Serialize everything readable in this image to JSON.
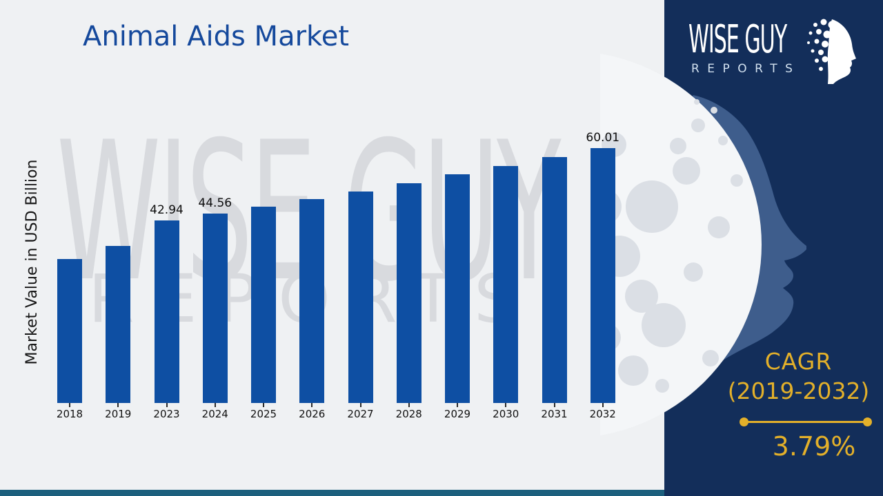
{
  "title": "Animal Aids Market",
  "y_axis_label": "Market Value in USD Billion",
  "watermark": {
    "line1": "WISE GUY",
    "line2": "REPORTS"
  },
  "logo": {
    "line1": "WISE GUY",
    "line2": "REPORTS"
  },
  "cagr": {
    "label": "CAGR",
    "range": "(2019-2032)",
    "value": "3.79%"
  },
  "colors": {
    "bar": "#0e4fa3",
    "navy_panel": "#132e5a",
    "gold": "#e3b02a",
    "teal_strip": "#1c5f7d",
    "title_blue": "#15499c",
    "face_silhouette": "#3e5d8c",
    "watermark_gray": "#d8dade"
  },
  "chart_data": {
    "type": "bar",
    "title": "Animal Aids Market",
    "xlabel": "",
    "ylabel": "Market Value in USD Billion",
    "categories": [
      "2018",
      "2019",
      "2023",
      "2024",
      "2025",
      "2026",
      "2027",
      "2028",
      "2029",
      "2030",
      "2031",
      "2032"
    ],
    "values": [
      33.8,
      37.0,
      42.94,
      44.56,
      46.2,
      47.9,
      49.7,
      51.7,
      53.8,
      55.8,
      57.9,
      60.01
    ],
    "data_labels": [
      "",
      "",
      "42.94",
      "44.56",
      "",
      "",
      "",
      "",
      "",
      "",
      "",
      "60.01"
    ],
    "ylim": [
      0,
      65
    ],
    "grid": false,
    "legend": "none",
    "bar_color": "#0e4fa3"
  }
}
